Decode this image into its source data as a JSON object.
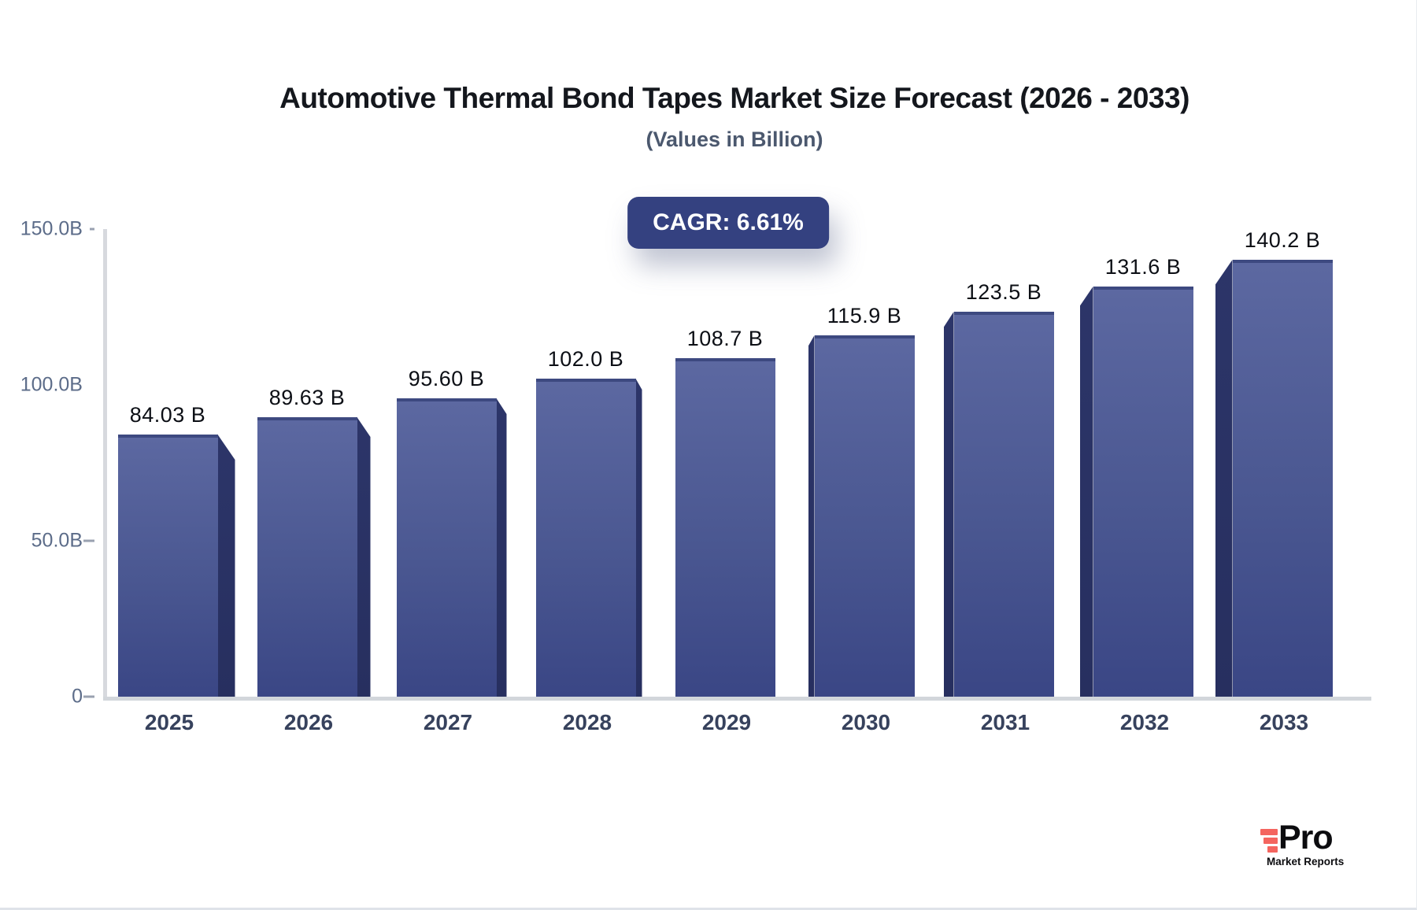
{
  "header": {
    "title": "Automotive Thermal Bond Tapes Market Size Forecast (2026 - 2033)",
    "subtitle": "(Values in Billion)"
  },
  "badge": {
    "label": "CAGR: 6.61%",
    "bg_color": "#344180",
    "text_color": "#ffffff"
  },
  "chart_data": {
    "type": "bar",
    "title": "Automotive Thermal Bond Tapes Market Size Forecast (2026 - 2033)",
    "subtitle": "(Values in Billion)",
    "unit": "Billion",
    "cagr": "6.61%",
    "categories": [
      "2025",
      "2026",
      "2027",
      "2028",
      "2029",
      "2030",
      "2031",
      "2032",
      "2033"
    ],
    "values": [
      84.03,
      89.63,
      95.6,
      102.0,
      108.7,
      115.9,
      123.5,
      131.6,
      140.2
    ],
    "bar_labels": [
      "84.03 B",
      "89.63 B",
      "95.60 B",
      "102.0 B",
      "108.7 B",
      "115.9 B",
      "123.5 B",
      "131.6 B",
      "140.2 B"
    ],
    "xlabel": "",
    "ylabel": "",
    "ylim": [
      0,
      150
    ],
    "yticks": [
      {
        "value": 150,
        "label": "150.0B",
        "dash": true
      },
      {
        "value": 100,
        "label": "100.0B",
        "dash": false
      },
      {
        "value": 50,
        "label": "50.0B",
        "dash": true
      },
      {
        "value": 0,
        "label": "0",
        "dash": true
      }
    ],
    "grid": false,
    "legend": "none",
    "style_3d": true,
    "bar_color_top": "#5c68a1",
    "bar_color_bottom": "#3a4685",
    "bar_top_edge_color": "#3d4980",
    "bar_side_color": "#2a3264",
    "axis_color": "#d5d8dd",
    "ytick_text_color": "#5c6c89",
    "xtick_text_color": "#37425d"
  },
  "logo": {
    "name": "Pro",
    "tagline": "Market Reports",
    "accent_color": "#f4655f"
  }
}
